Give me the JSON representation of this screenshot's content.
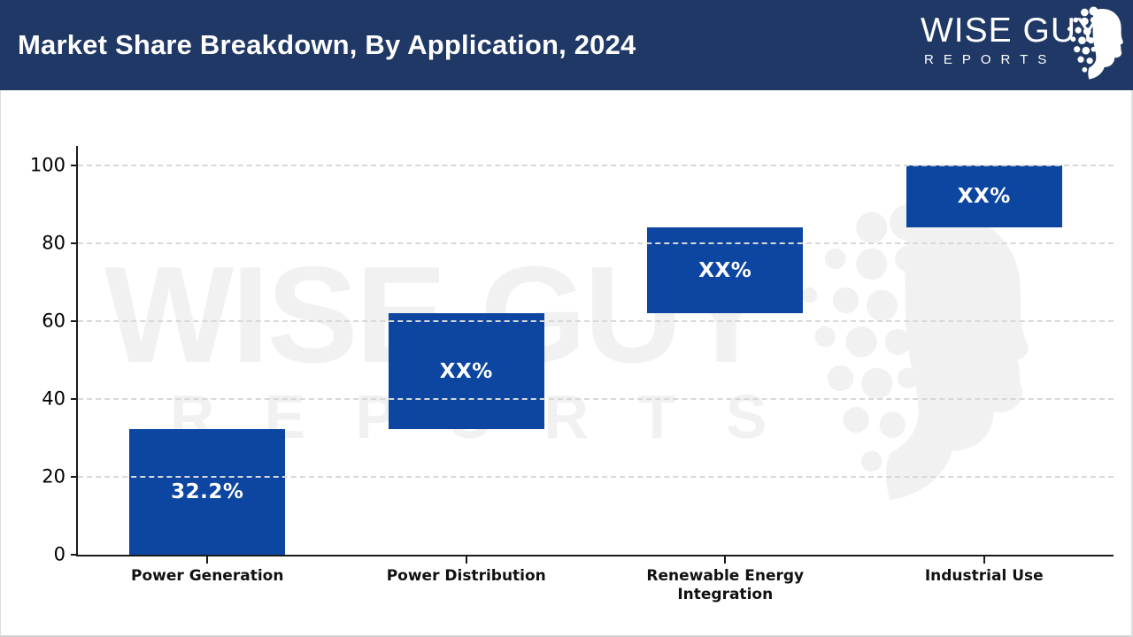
{
  "header": {
    "title": "Market Share Breakdown, By Application, 2024",
    "bg_color": "#1f3865",
    "logo": {
      "line1": "WISE GUY",
      "line2": "REPORTS"
    }
  },
  "watermark": {
    "line1": "WISE GUY",
    "line2": "REPORTS"
  },
  "chart_data": {
    "type": "bar",
    "variant": "waterfall-floating-bars",
    "title": "Market Share Breakdown, By Application, 2024",
    "categories": [
      "Power Generation",
      "Power Distribution",
      "Renewable Energy Integration",
      "Industrial Use"
    ],
    "segments": [
      {
        "category": "Power Generation",
        "start": 0,
        "end": 32.2,
        "label": "32.2%"
      },
      {
        "category": "Power Distribution",
        "start": 32.2,
        "end": 62,
        "label": "XX%"
      },
      {
        "category": "Renewable Energy Integration",
        "start": 62,
        "end": 84,
        "label": "XX%"
      },
      {
        "category": "Industrial Use",
        "start": 84,
        "end": 100,
        "label": "XX%"
      }
    ],
    "ylim": [
      0,
      100
    ],
    "yticks": [
      0,
      20,
      40,
      60,
      80,
      100
    ],
    "grid": "horizontal dashed, drawn over bars",
    "legend": "none",
    "bar_color": "#0c46a0",
    "bar_label_color": "#ffffff",
    "axis_color": "#1a1a1a",
    "gridline_color": "#d8d8d8"
  }
}
